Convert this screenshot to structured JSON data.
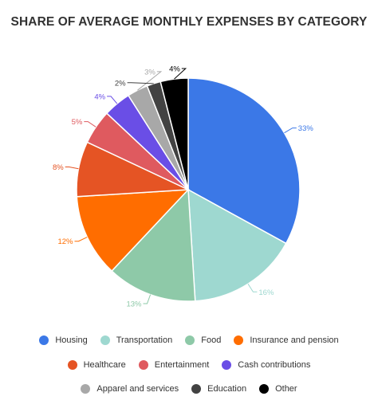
{
  "chart_data": {
    "type": "pie",
    "title": "SHARE OF AVERAGE MONTHLY EXPENSES BY CATEGORY",
    "slices": [
      {
        "label": "Housing",
        "value": 33,
        "display": "33%",
        "color": "#3b78e7"
      },
      {
        "label": "Transportation",
        "value": 16,
        "display": "16%",
        "color": "#9ed8d0"
      },
      {
        "label": "Food",
        "value": 13,
        "display": "13%",
        "color": "#8ec9a8"
      },
      {
        "label": "Insurance and pension",
        "value": 12,
        "display": "12%",
        "color": "#ff6d00"
      },
      {
        "label": "Healthcare",
        "value": 8,
        "display": "8%",
        "color": "#e55424"
      },
      {
        "label": "Entertainment",
        "value": 5,
        "display": "5%",
        "color": "#df5a5f"
      },
      {
        "label": "Cash contributions",
        "value": 4,
        "display": "4%",
        "color": "#6a4ee6"
      },
      {
        "label": "Apparel and services",
        "value": 3,
        "display": "3%",
        "color": "#a8a8a8"
      },
      {
        "label": "Education",
        "value": 2,
        "display": "2%",
        "color": "#424242"
      },
      {
        "label": "Other",
        "value": 4,
        "display": "4%",
        "color": "#000000"
      }
    ],
    "legend_placement": "bottom"
  }
}
